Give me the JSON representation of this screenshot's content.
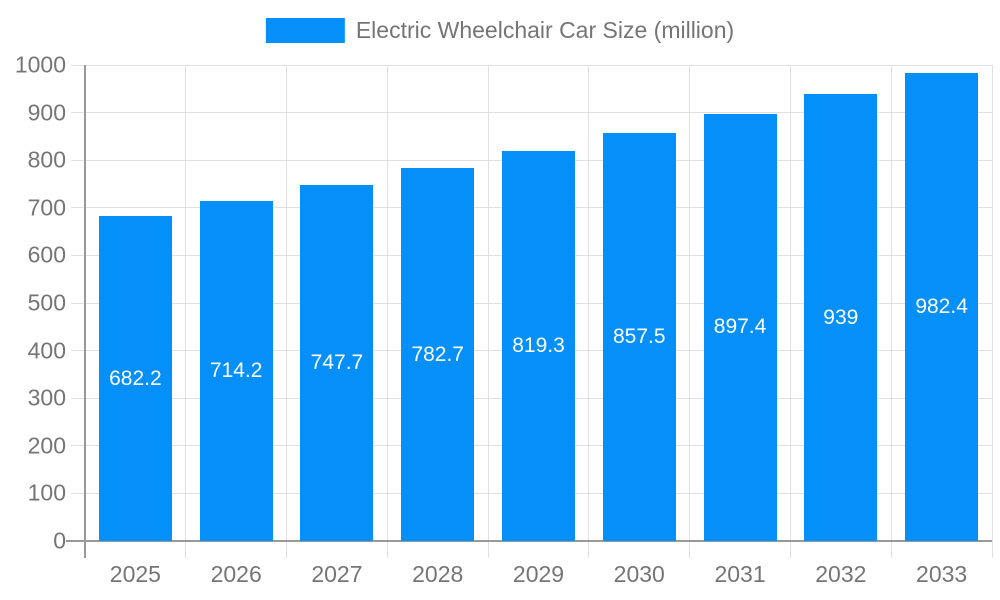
{
  "chart_data": {
    "type": "bar",
    "title": "Electric Wheelchair Car Size (million)",
    "categories": [
      "2025",
      "2026",
      "2027",
      "2028",
      "2029",
      "2030",
      "2031",
      "2032",
      "2033"
    ],
    "values": [
      682.2,
      714.2,
      747.7,
      782.7,
      819.3,
      857.5,
      897.4,
      939,
      982.4
    ],
    "value_labels": [
      "682.2",
      "714.2",
      "747.7",
      "782.7",
      "819.3",
      "857.5",
      "897.4",
      "939",
      "982.4"
    ],
    "series_name": "Electric Wheelchair Car Size (million)",
    "xlabel": "",
    "ylabel": "",
    "ylim": [
      0,
      1000
    ],
    "y_ticks": [
      0,
      100,
      200,
      300,
      400,
      500,
      600,
      700,
      800,
      900,
      1000
    ],
    "grid": true,
    "legend_position": "top-center",
    "colors": {
      "bar": "#0590f9",
      "value_label": "#ffffff",
      "axis_text": "#757575",
      "grid_line": "#e0e0e0",
      "axis_line": "#999999",
      "background": "#ffffff"
    }
  }
}
